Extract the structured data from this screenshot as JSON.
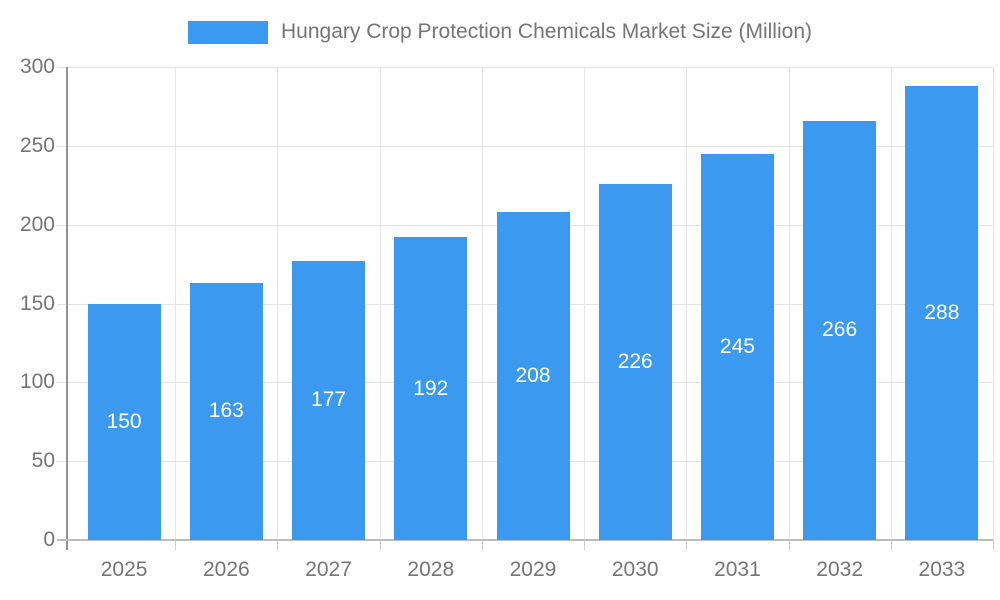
{
  "legend": {
    "label": "Hungary Crop Protection Chemicals Market Size (Million)"
  },
  "chart_data": {
    "type": "bar",
    "title": "Hungary Crop Protection Chemicals Market Size (Million)",
    "categories": [
      "2025",
      "2026",
      "2027",
      "2028",
      "2029",
      "2030",
      "2031",
      "2032",
      "2033"
    ],
    "values": [
      150,
      163,
      177,
      192,
      208,
      226,
      245,
      266,
      288
    ],
    "xlabel": "",
    "ylabel": "",
    "ylim": [
      0,
      300
    ],
    "yticks": [
      0,
      50,
      100,
      150,
      200,
      250,
      300
    ],
    "grid": true,
    "legend_position": "top",
    "value_labels_shown": true,
    "bar_color": "#3b9aef",
    "value_label_color": "#ffffff",
    "axis_text_color": "#757575",
    "gridline_color": "#e6e6e6"
  }
}
